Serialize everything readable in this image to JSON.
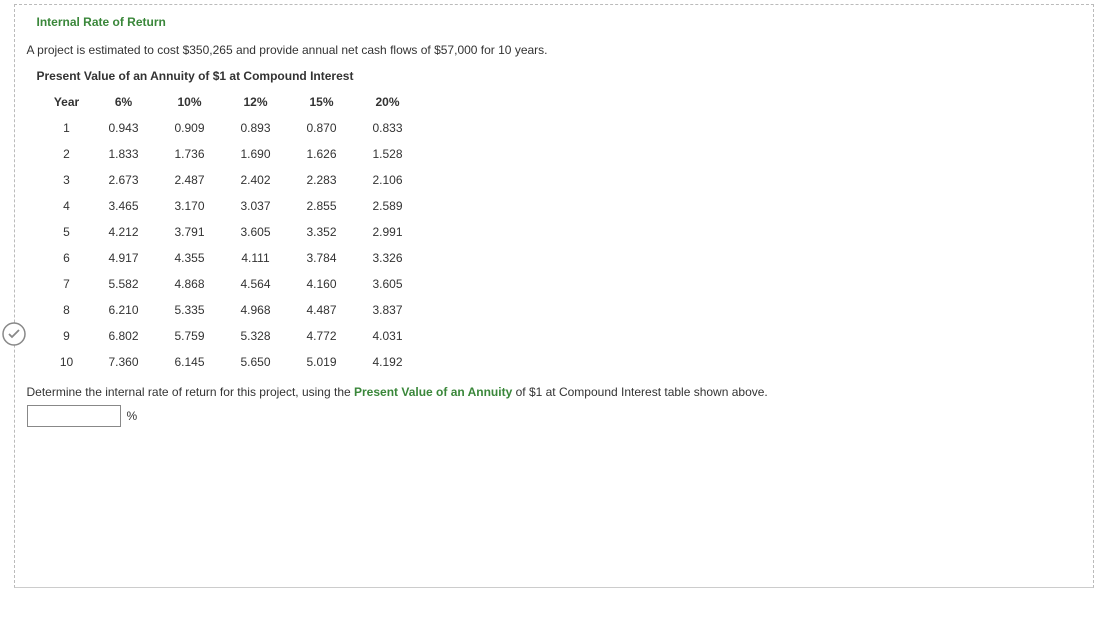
{
  "title": "Internal Rate of Return",
  "description": "A project is estimated to cost $350,265 and provide annual net cash flows of $57,000 for 10 years.",
  "table_title": "Present Value of an Annuity of $1 at Compound Interest",
  "annuity_table": {
    "columns": [
      "Year",
      "6%",
      "10%",
      "12%",
      "15%",
      "20%"
    ],
    "rows": [
      [
        "1",
        "0.943",
        "0.909",
        "0.893",
        "0.870",
        "0.833"
      ],
      [
        "2",
        "1.833",
        "1.736",
        "1.690",
        "1.626",
        "1.528"
      ],
      [
        "3",
        "2.673",
        "2.487",
        "2.402",
        "2.283",
        "2.106"
      ],
      [
        "4",
        "3.465",
        "3.170",
        "3.037",
        "2.855",
        "2.589"
      ],
      [
        "5",
        "4.212",
        "3.791",
        "3.605",
        "3.352",
        "2.991"
      ],
      [
        "6",
        "4.917",
        "4.355",
        "4.111",
        "3.784",
        "3.326"
      ],
      [
        "7",
        "5.582",
        "4.868",
        "4.564",
        "4.160",
        "3.605"
      ],
      [
        "8",
        "6.210",
        "5.335",
        "4.968",
        "4.487",
        "3.837"
      ],
      [
        "9",
        "6.802",
        "5.759",
        "5.328",
        "4.772",
        "4.031"
      ],
      [
        "10",
        "7.360",
        "6.145",
        "5.650",
        "5.019",
        "4.192"
      ]
    ]
  },
  "question_pre": "Determine the internal rate of return for this project, using the ",
  "question_link": "Present Value of an Annuity",
  "question_post": " of $1 at Compound Interest table shown above.",
  "percent_symbol": "%",
  "colors": {
    "green": "#3a873a",
    "text": "#333333",
    "border_dash": "#bbbbbb"
  }
}
